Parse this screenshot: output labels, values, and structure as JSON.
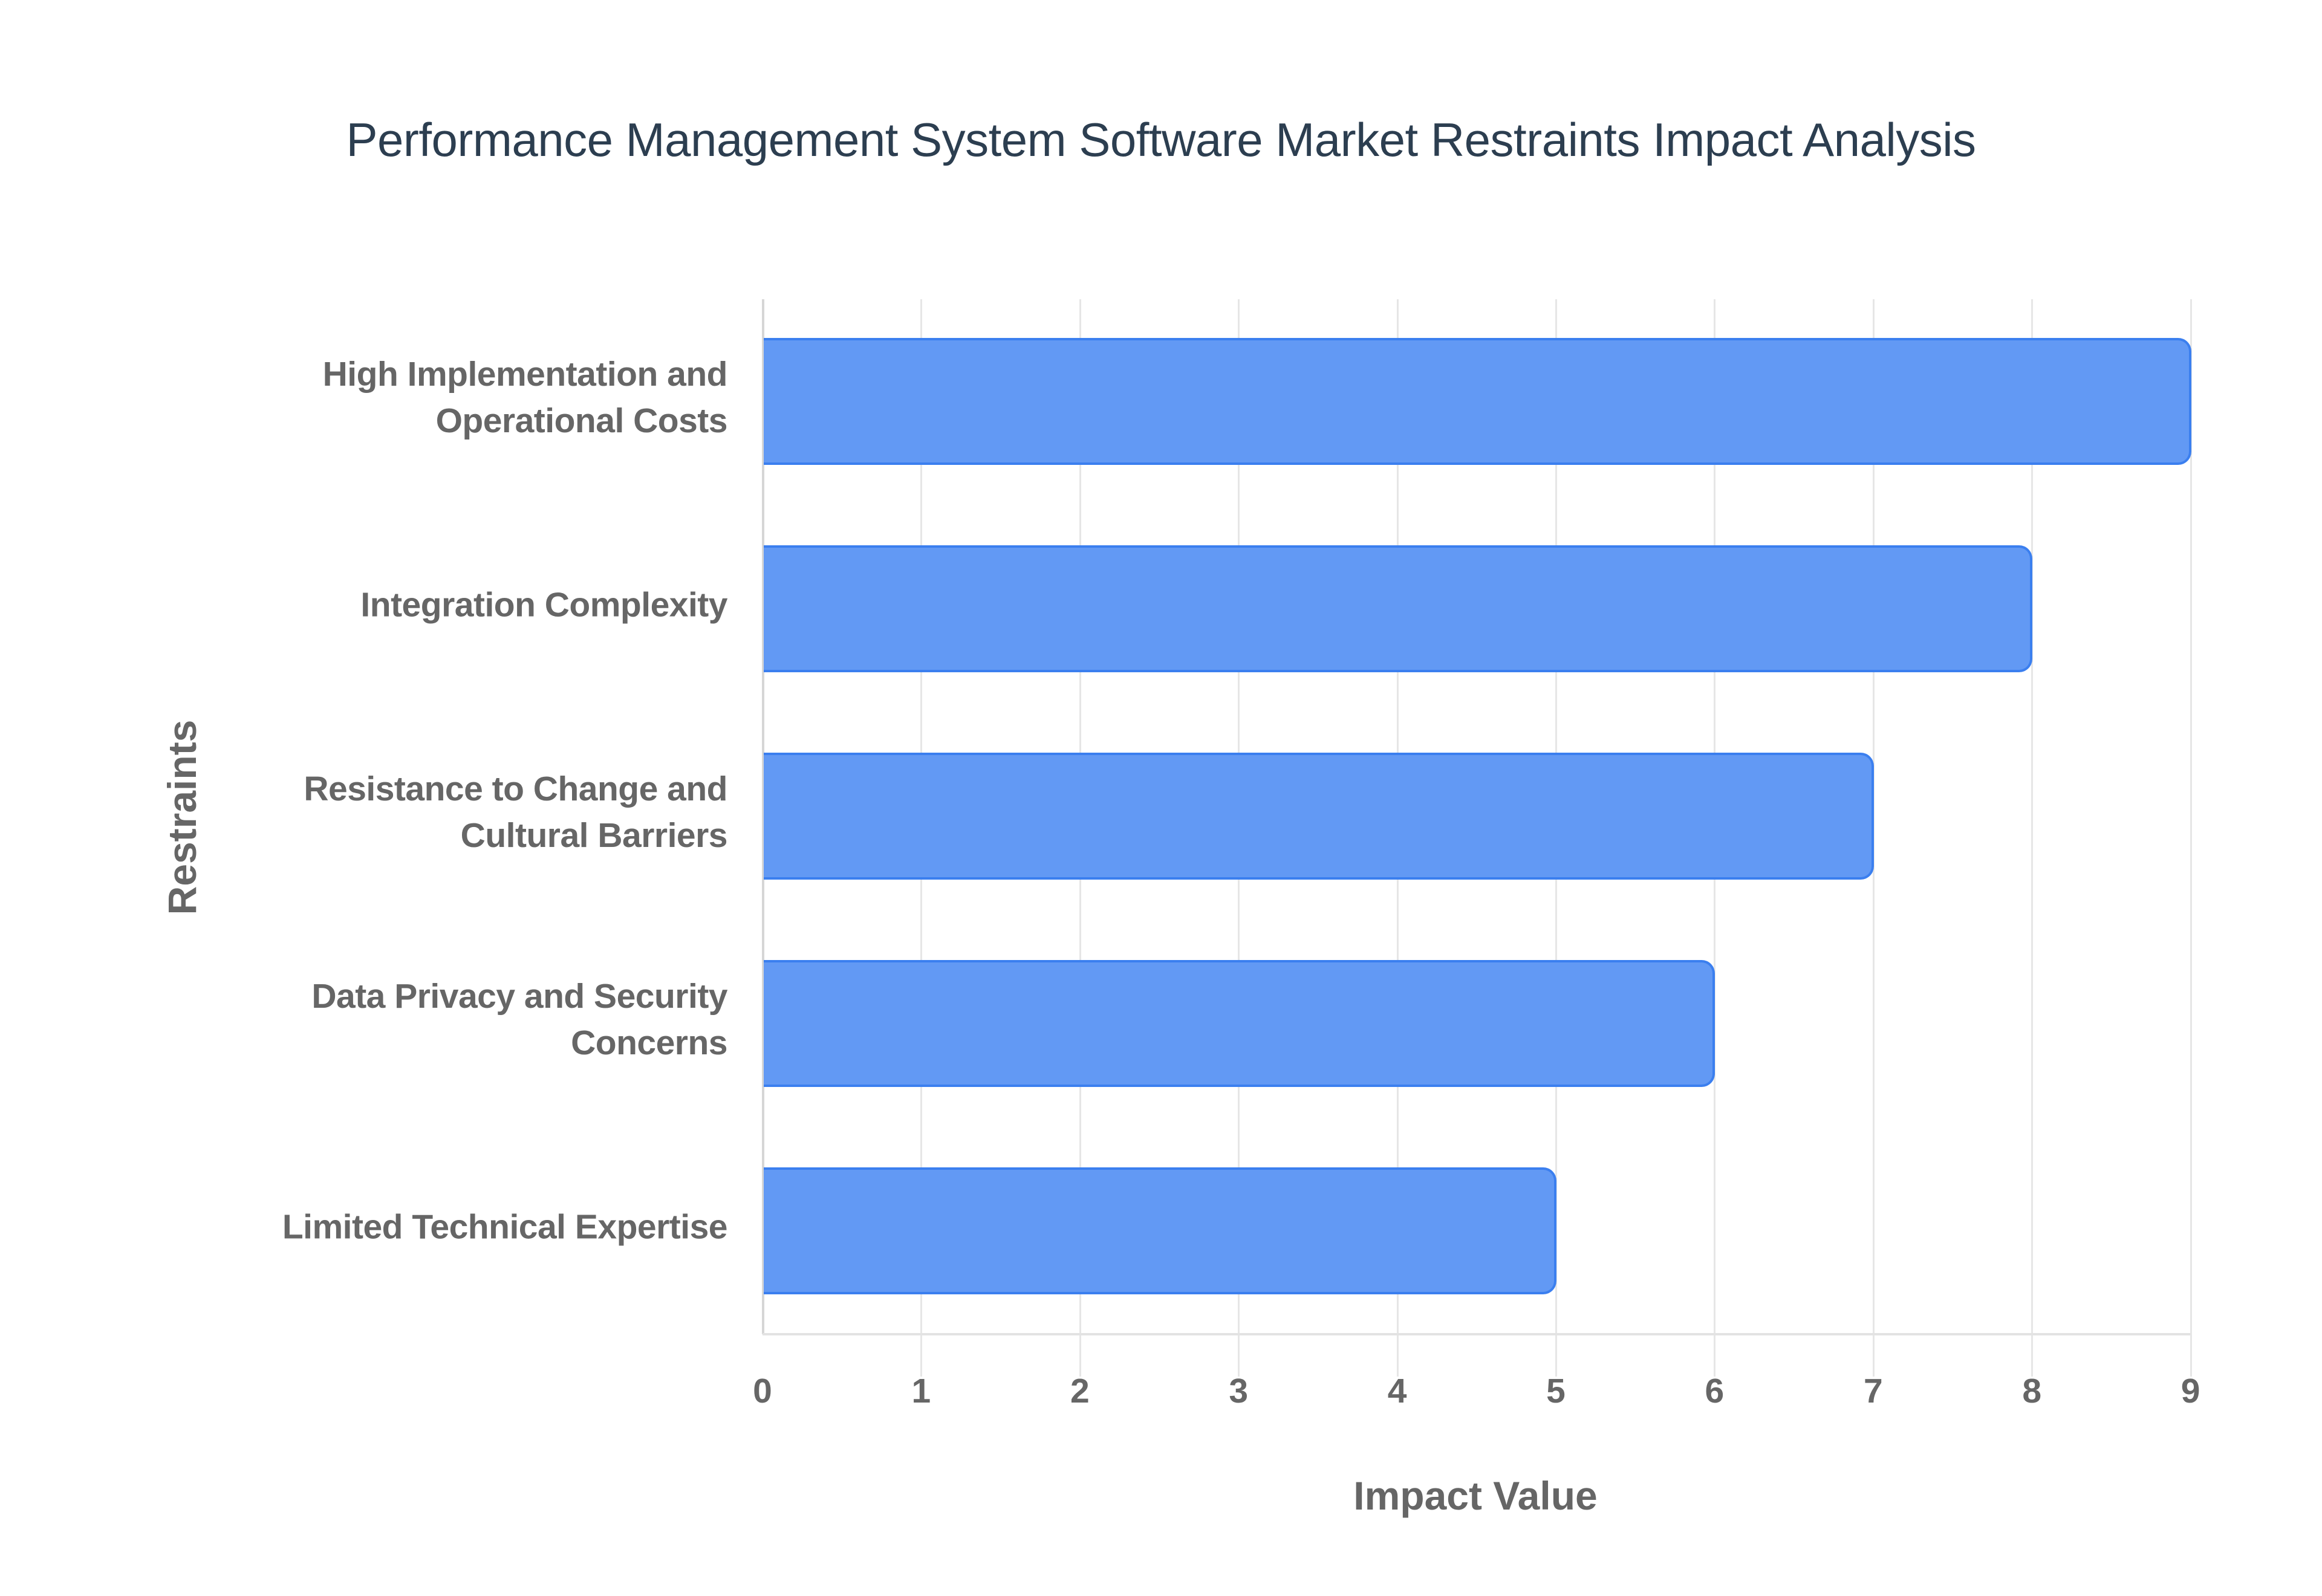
{
  "title": "Performance Management System Software Market Restraints Impact Analysis",
  "colors": {
    "bar_fill": "#6299f4",
    "bar_border": "#3b7fef",
    "title": "#2c3e50",
    "axis_text": "#666666",
    "grid": "#e6e6e6"
  },
  "axes": {
    "x_title": "Impact Value",
    "y_title": "Restraints",
    "x_ticks": [
      "0",
      "1",
      "2",
      "3",
      "4",
      "5",
      "6",
      "7",
      "8",
      "9"
    ]
  },
  "categories": [
    {
      "label": "High Implementation and\nOperational Costs",
      "value": 9
    },
    {
      "label": "Integration Complexity",
      "value": 8
    },
    {
      "label": "Resistance to Change and\nCultural Barriers",
      "value": 7
    },
    {
      "label": "Data Privacy and Security\nConcerns",
      "value": 6
    },
    {
      "label": "Limited Technical Expertise",
      "value": 5
    }
  ],
  "chart_data": {
    "type": "bar",
    "orientation": "horizontal",
    "title": "Performance Management System Software Market Restraints Impact Analysis",
    "categories": [
      "High Implementation and Operational Costs",
      "Integration Complexity",
      "Resistance to Change and Cultural Barriers",
      "Data Privacy and Security Concerns",
      "Limited Technical Expertise"
    ],
    "values": [
      9,
      8,
      7,
      6,
      5
    ],
    "xlabel": "Impact Value",
    "ylabel": "Restraints",
    "xlim": [
      0,
      9
    ],
    "x_ticks": [
      0,
      1,
      2,
      3,
      4,
      5,
      6,
      7,
      8,
      9
    ],
    "grid": true,
    "legend": null
  }
}
